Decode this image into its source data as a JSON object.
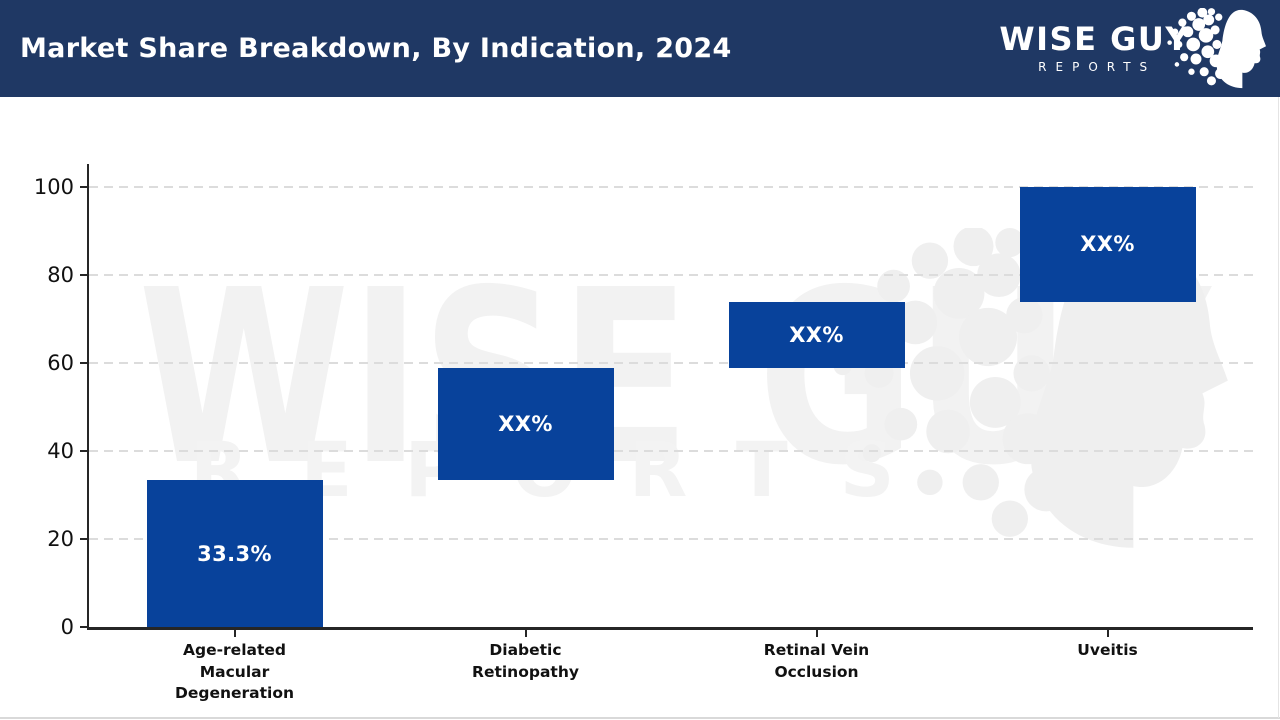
{
  "colors": {
    "header_bg": "#1F3864",
    "bar_blue": "#08429B",
    "grid": "#DCDCDC",
    "spine": "#262626",
    "watermark": "#F2F2F2",
    "bar_label": "#FFFFFF",
    "text": "#111111"
  },
  "header": {
    "title": "Market Share Breakdown, By Indication, 2024",
    "logo_line1": "WISE GUY",
    "logo_line2": "REPORTS"
  },
  "watermark": {
    "line1": "WISE GUY",
    "line2": "REPORTS"
  },
  "chart_data": {
    "type": "bar",
    "subtype": "floating-waterfall-segments",
    "title": "Market Share Breakdown, By Indication, 2024",
    "categories": [
      "Age-related Macular Degeneration",
      "Diabetic Retinopathy",
      "Retinal Vein Occlusion",
      "Uveitis"
    ],
    "category_label_lines": [
      "Age-related\nMacular\nDegeneration",
      "Diabetic\nRetinopathy",
      "Retinal Vein\nOcclusion",
      "Uveitis"
    ],
    "bars": [
      {
        "category": "Age-related Macular Degeneration",
        "start": 0,
        "end": 33.3,
        "label": "33.3%"
      },
      {
        "category": "Diabetic Retinopathy",
        "start": 33.3,
        "end": 58.8,
        "label": "XX%"
      },
      {
        "category": "Retinal Vein Occlusion",
        "start": 58.8,
        "end": 73.8,
        "label": "XX%"
      },
      {
        "category": "Uveitis",
        "start": 73.8,
        "end": 100,
        "label": "XX%"
      }
    ],
    "ylim": [
      0,
      100
    ],
    "yticks": [
      0,
      20,
      40,
      60,
      80,
      100
    ],
    "grid": "horizontal-dashed",
    "legend": "none"
  }
}
